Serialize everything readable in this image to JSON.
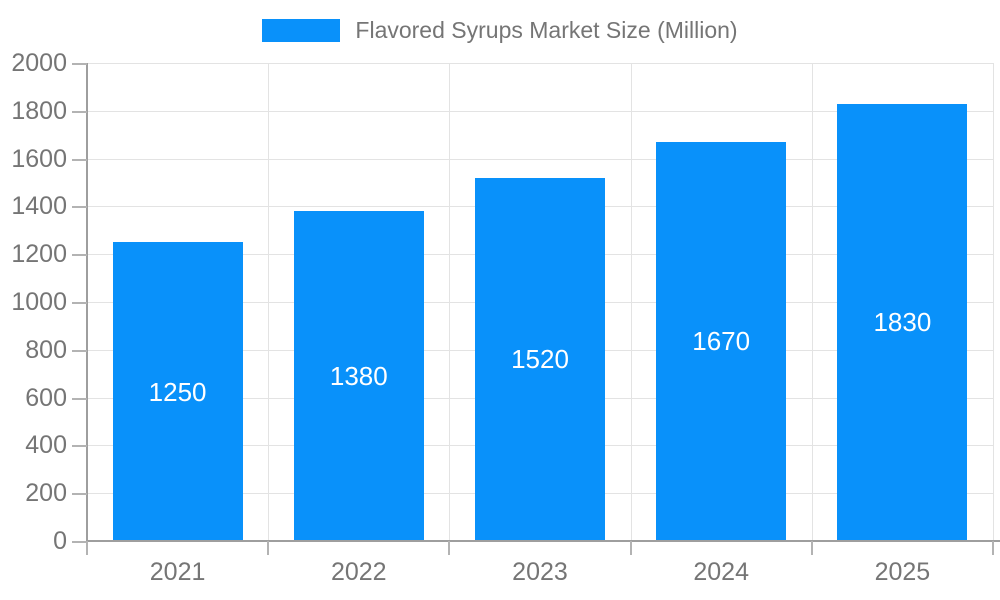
{
  "legend": {
    "label": "Flavored Syrups Market Size (Million)"
  },
  "chart_data": {
    "type": "bar",
    "title": "Flavored Syrups Market Size (Million)",
    "categories": [
      "2021",
      "2022",
      "2023",
      "2024",
      "2025"
    ],
    "values": [
      1250,
      1380,
      1520,
      1670,
      1830
    ],
    "xlabel": "",
    "ylabel": "",
    "ylim": [
      0,
      2000
    ],
    "ytick_step": 200,
    "grid": "both",
    "legend_position": "top",
    "bar_color": "#0991fa",
    "bar_value_label_color": "#ffffff",
    "axis_text_color": "#757575",
    "grid_color": "#e3e3e3",
    "axis_line_color": "#9e9e9e",
    "tick_color": "#b3b3b3",
    "background_color": "#ffffff"
  }
}
